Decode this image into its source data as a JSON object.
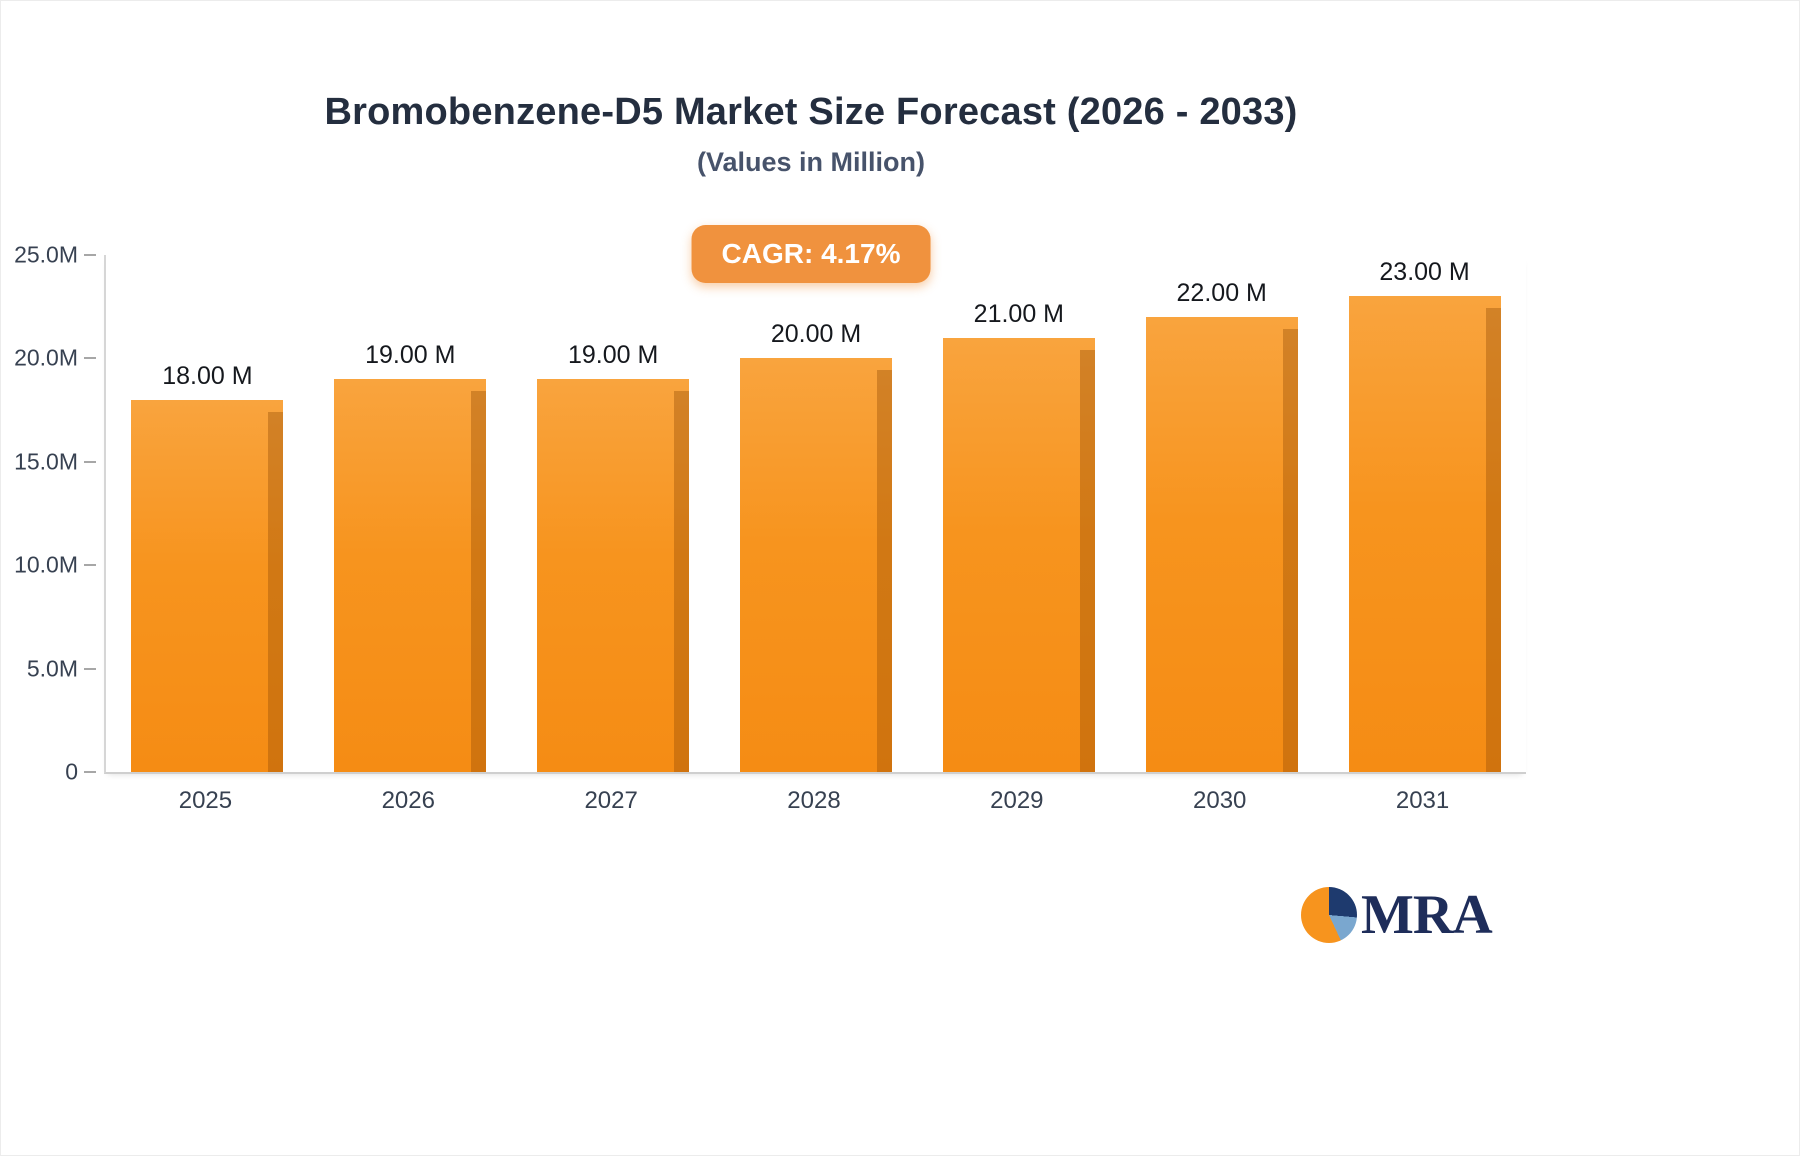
{
  "header": {
    "title": "Bromobenzene-D5 Market Size Forecast (2026 - 2033)",
    "subtitle": "(Values in Million)"
  },
  "badge": {
    "label": "CAGR: 4.17%"
  },
  "logo": {
    "text": "MRA"
  },
  "colors": {
    "bar": "#f7941e",
    "bar_side": "#c4770f",
    "badge_bg": "#f0923e",
    "logo_navy": "#1e3a6e",
    "logo_blue": "#7aa7cf",
    "logo_orange": "#f7941e"
  },
  "chart_data": {
    "type": "bar",
    "title": "Bromobenzene-D5 Market Size Forecast (2026 - 2033)",
    "subtitle": "(Values in Million)",
    "categories": [
      "2025",
      "2026",
      "2027",
      "2028",
      "2029",
      "2030",
      "2031"
    ],
    "values": [
      18,
      19,
      19,
      20,
      21,
      22,
      23
    ],
    "value_labels": [
      "18.00 M",
      "19.00 M",
      "19.00 M",
      "20.00 M",
      "21.00 M",
      "22.00 M",
      "23.00 M"
    ],
    "xlabel": "",
    "ylabel": "",
    "ylim": [
      0,
      25
    ],
    "y_ticks": [
      {
        "label": "25.0M",
        "value": 25
      },
      {
        "label": "20.0M",
        "value": 20
      },
      {
        "label": "15.0M",
        "value": 15
      },
      {
        "label": "10.0M",
        "value": 10
      },
      {
        "label": "5.0M",
        "value": 5
      },
      {
        "label": "0",
        "value": 0
      }
    ],
    "grid": false,
    "legend": false,
    "annotations": [
      "CAGR: 4.17%"
    ]
  }
}
